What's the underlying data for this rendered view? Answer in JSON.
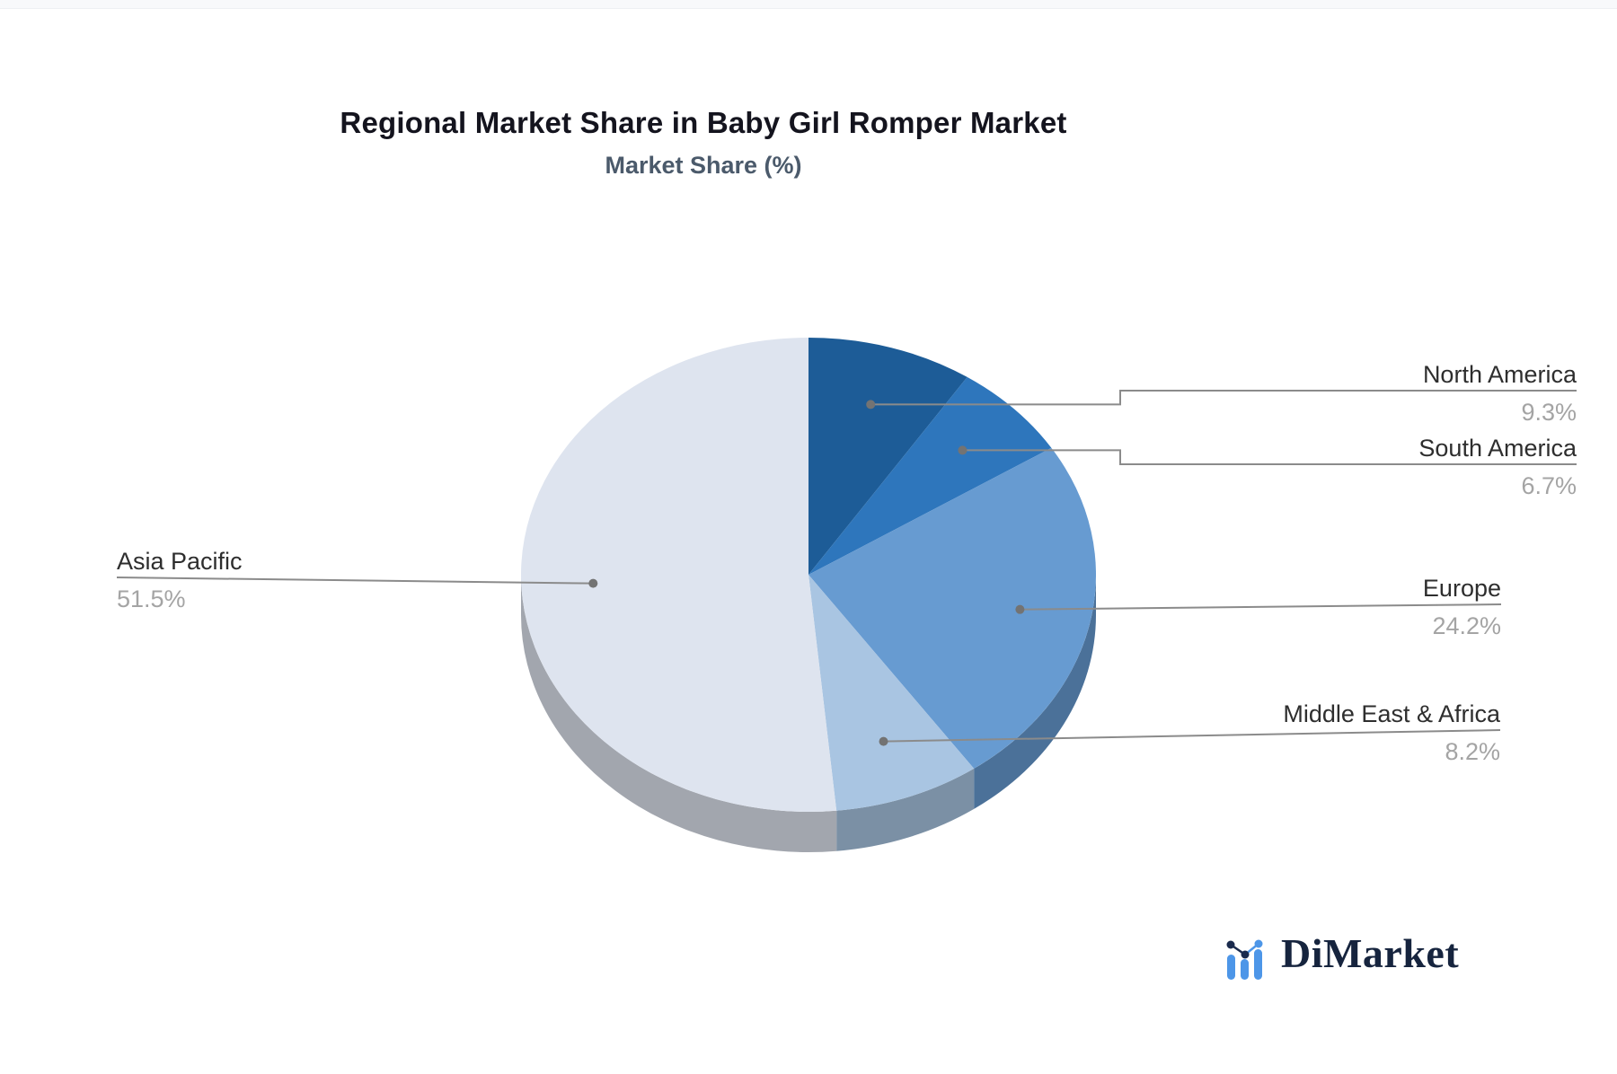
{
  "page": {
    "title": "Regional Market Share in Baby Girl Romper Market",
    "subtitle": "Market Share (%)"
  },
  "logo": {
    "text": "DiMarket"
  },
  "chart_data": {
    "type": "pie",
    "title": "Regional Market Share in Baby Girl Romper Market",
    "subtitle": "Market Share (%)",
    "unit": "%",
    "style": "3d-pie",
    "start_angle": "12-o-clock",
    "direction": "clockwise",
    "legend_position": "callout-labels",
    "slices": [
      {
        "label": "North America",
        "value": 9.3,
        "display": "9.3%",
        "color": "#1d5c97"
      },
      {
        "label": "South America",
        "value": 6.7,
        "display": "6.7%",
        "color": "#2e76bc"
      },
      {
        "label": "Europe",
        "value": 24.2,
        "display": "24.2%",
        "color": "#679bd1"
      },
      {
        "label": "Middle East & Africa",
        "value": 8.2,
        "display": "8.2%",
        "color": "#a9c5e2"
      },
      {
        "label": "Asia Pacific",
        "value": 51.5,
        "display": "51.5%",
        "color": "#dee4ef"
      }
    ],
    "leader_line_color": "#8b8b8b",
    "label_text_color": "#2e2e2e",
    "value_text_color": "#a4a4a4"
  }
}
